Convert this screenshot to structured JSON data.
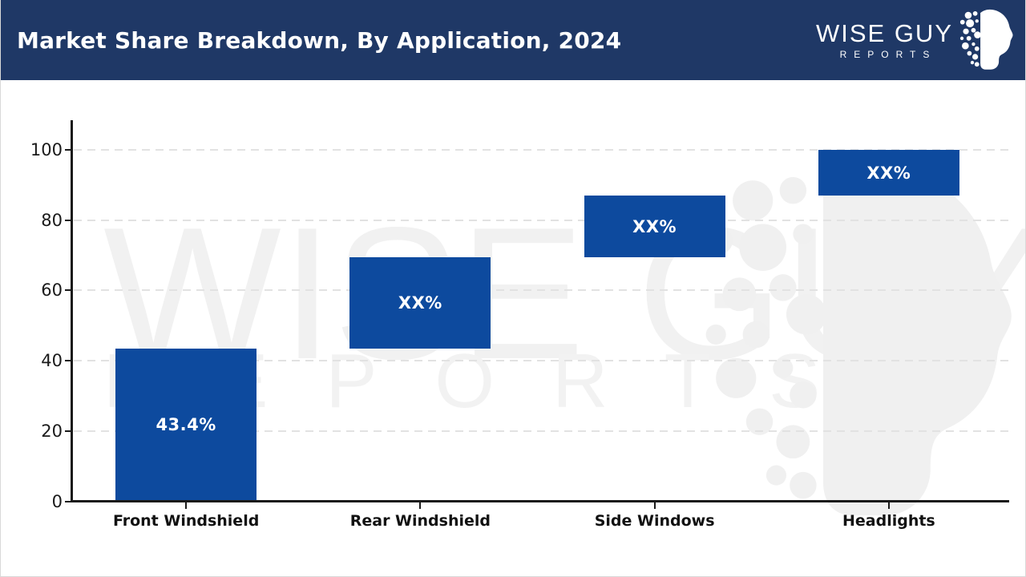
{
  "header": {
    "title": "Market Share Breakdown, By Application, 2024",
    "bg_color": "#1f3866",
    "logo_line1": "WISE GUY",
    "logo_line2": "REPORTS"
  },
  "watermark": {
    "line1": "WISE GUY",
    "line2": "REPORTS"
  },
  "chart_data": {
    "type": "bar",
    "subtype": "floating-waterfall",
    "title": "Market Share Breakdown, By Application, 2024",
    "categories": [
      "Front Windshield",
      "Rear Windshield",
      "Side Windows",
      "Headlights"
    ],
    "series": [
      {
        "name": "Market Share",
        "segments": [
          {
            "category": "Front Windshield",
            "start": 0,
            "end": 43.4,
            "label": "43.4%"
          },
          {
            "category": "Rear Windshield",
            "start": 43.4,
            "end": 69.4,
            "label": "XX%"
          },
          {
            "category": "Side Windows",
            "start": 69.4,
            "end": 87.0,
            "label": "XX%"
          },
          {
            "category": "Headlights",
            "start": 87.0,
            "end": 100,
            "label": "XX%"
          }
        ]
      }
    ],
    "xlabel": "",
    "ylabel": "",
    "ylim": [
      0,
      108
    ],
    "yticks": [
      0,
      20,
      40,
      60,
      80,
      100
    ],
    "grid": "horizontal-dashed",
    "legend_position": "none",
    "bar_color": "#0d4a9e",
    "bar_label_color": "#ffffff",
    "axis_color": "#1a1a1a",
    "gridline_color": "#e2e2e2"
  }
}
